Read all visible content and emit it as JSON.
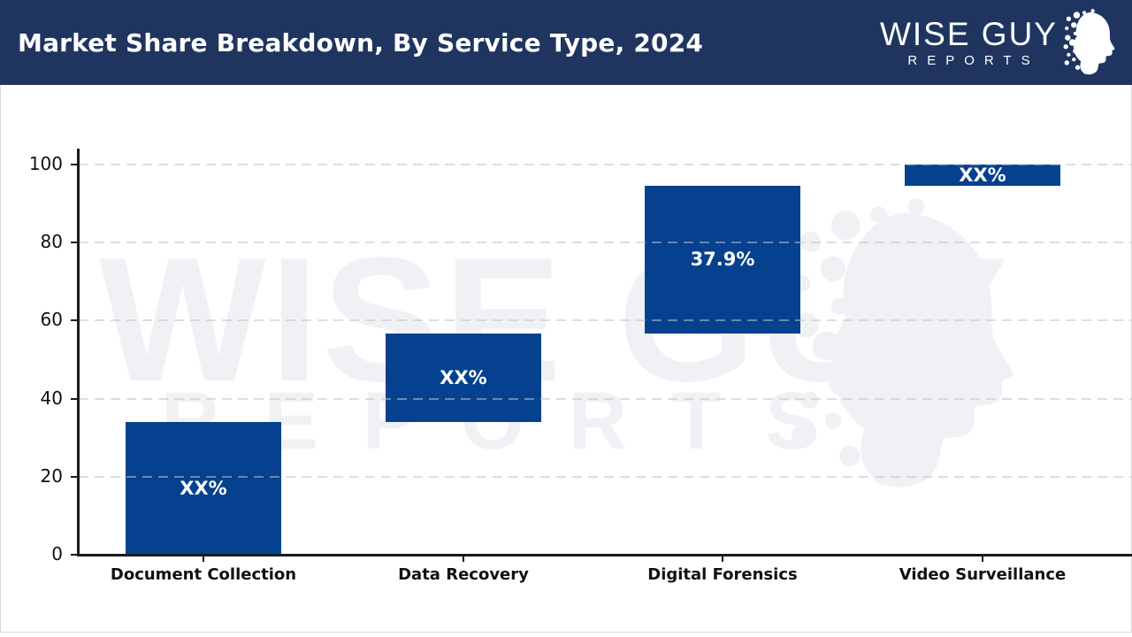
{
  "header": {
    "title": "Market Share Breakdown, By Service Type, 2024",
    "logo": {
      "name": "WISE GUY",
      "tagline": "REPORTS"
    }
  },
  "watermark": {
    "line1": "WISE GUY",
    "line2": "REPORTS"
  },
  "chart_data": {
    "type": "bar",
    "subtype": "waterfall",
    "title": "Market Share Breakdown, By Service Type, 2024",
    "categories": [
      "Document Collection",
      "Data Recovery",
      "Digital Forensics",
      "Video Surveillance"
    ],
    "segments": [
      {
        "category": "Document Collection",
        "start": 0,
        "end": 34.1,
        "label": "XX%"
      },
      {
        "category": "Data Recovery",
        "start": 34.1,
        "end": 56.7,
        "label": "XX%"
      },
      {
        "category": "Digital Forensics",
        "start": 56.7,
        "end": 94.6,
        "label": "37.9%"
      },
      {
        "category": "Video Surveillance",
        "start": 94.6,
        "end": 100,
        "label": "XX%"
      }
    ],
    "ylim": [
      0,
      100
    ],
    "yticks": [
      0,
      20,
      40,
      60,
      80,
      100
    ],
    "xlabel": "",
    "ylabel": "",
    "grid": "horizontal-dashed",
    "legend": "none"
  },
  "colors": {
    "header_bg": "#1f3560",
    "bar": "#05418e",
    "bar_label": "#ffffff",
    "axis": "#1a1a1a",
    "grid": "#d9dde1",
    "text": "#111111",
    "watermark": "#f0f1f4",
    "card_border": "#d8d8d8"
  }
}
